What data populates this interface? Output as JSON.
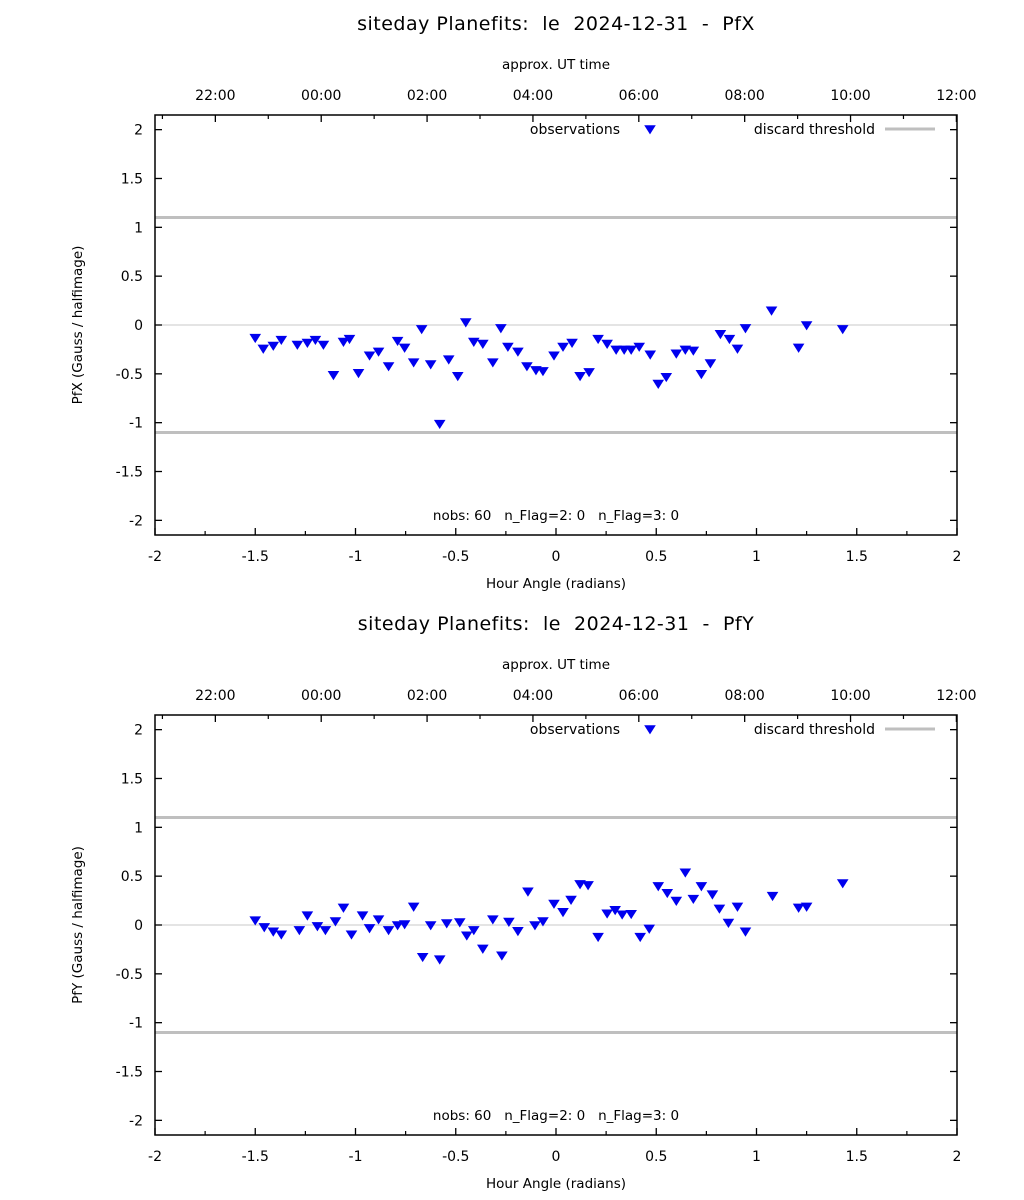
{
  "colors": {
    "marker": "#0000ee",
    "threshold": "#bfbfbf",
    "zero_line": "#c8c8c8",
    "axis": "#000000",
    "background": "#ffffff"
  },
  "chart_data": [
    {
      "type": "scatter",
      "title": "siteday Planefits:  le  2024-12-31  -  PfX",
      "x2label": "approx. UT time",
      "xlabel": "Hour Angle (radians)",
      "ylabel": "PfX (Gauss / halfimage)",
      "annotation": "nobs: 60   n_Flag=2: 0   n_Flag=3: 0",
      "xlim": [
        -2,
        2
      ],
      "ylim": [
        -2.15,
        2.15
      ],
      "xticks": [
        -2,
        -1.5,
        -1,
        -0.5,
        0,
        0.5,
        1,
        1.5,
        2
      ],
      "xminor": [
        -1.75,
        -1.25,
        -0.75,
        -0.25,
        0.25,
        0.75,
        1.25,
        1.75
      ],
      "yticks": [
        2,
        1.5,
        1,
        0.5,
        0,
        -0.5,
        -1,
        -1.5,
        -2
      ],
      "ut_ticks": [
        {
          "label": "22:00",
          "x": -1.699
        },
        {
          "label": "00:00",
          "x": -1.171
        },
        {
          "label": "02:00",
          "x": -0.643
        },
        {
          "label": "04:00",
          "x": -0.115
        },
        {
          "label": "06:00",
          "x": 0.413
        },
        {
          "label": "08:00",
          "x": 0.941
        },
        {
          "label": "10:00",
          "x": 1.469
        },
        {
          "label": "12:00",
          "x": 1.997
        }
      ],
      "ut_minor": [
        -1.963,
        -1.435,
        -0.907,
        -0.379,
        0.149,
        0.677,
        1.205,
        1.733
      ],
      "discard_threshold": 1.1,
      "legend": {
        "observations_label": "observations",
        "threshold_label": "discard threshold"
      },
      "series": [
        {
          "name": "observations",
          "marker": "triangle-down",
          "points": [
            [
              -1.5,
              -0.13
            ],
            [
              -1.46,
              -0.24
            ],
            [
              -1.41,
              -0.21
            ],
            [
              -1.37,
              -0.15
            ],
            [
              -1.29,
              -0.2
            ],
            [
              -1.24,
              -0.18
            ],
            [
              -1.2,
              -0.15
            ],
            [
              -1.16,
              -0.2
            ],
            [
              -1.11,
              -0.51
            ],
            [
              -1.06,
              -0.17
            ],
            [
              -1.03,
              -0.14
            ],
            [
              -0.985,
              -0.49
            ],
            [
              -0.93,
              -0.31
            ],
            [
              -0.885,
              -0.27
            ],
            [
              -0.835,
              -0.42
            ],
            [
              -0.79,
              -0.16
            ],
            [
              -0.755,
              -0.23
            ],
            [
              -0.71,
              -0.38
            ],
            [
              -0.67,
              -0.04
            ],
            [
              -0.625,
              -0.4
            ],
            [
              -0.58,
              -1.01
            ],
            [
              -0.535,
              -0.35
            ],
            [
              -0.49,
              -0.52
            ],
            [
              -0.45,
              0.03
            ],
            [
              -0.41,
              -0.17
            ],
            [
              -0.365,
              -0.19
            ],
            [
              -0.315,
              -0.38
            ],
            [
              -0.275,
              -0.03
            ],
            [
              -0.24,
              -0.22
            ],
            [
              -0.19,
              -0.27
            ],
            [
              -0.145,
              -0.42
            ],
            [
              -0.1,
              -0.46
            ],
            [
              -0.065,
              -0.47
            ],
            [
              -0.01,
              -0.31
            ],
            [
              0.035,
              -0.22
            ],
            [
              0.08,
              -0.18
            ],
            [
              0.12,
              -0.52
            ],
            [
              0.165,
              -0.48
            ],
            [
              0.21,
              -0.14
            ],
            [
              0.255,
              -0.19
            ],
            [
              0.3,
              -0.25
            ],
            [
              0.34,
              -0.25
            ],
            [
              0.375,
              -0.25
            ],
            [
              0.415,
              -0.22
            ],
            [
              0.47,
              -0.3
            ],
            [
              0.51,
              -0.6
            ],
            [
              0.55,
              -0.53
            ],
            [
              0.6,
              -0.29
            ],
            [
              0.645,
              -0.25
            ],
            [
              0.685,
              -0.26
            ],
            [
              0.725,
              -0.5
            ],
            [
              0.77,
              -0.39
            ],
            [
              0.82,
              -0.09
            ],
            [
              0.865,
              -0.14
            ],
            [
              0.905,
              -0.24
            ],
            [
              0.945,
              -0.03
            ],
            [
              1.075,
              0.15
            ],
            [
              1.21,
              -0.23
            ],
            [
              1.25,
              0.0
            ],
            [
              1.43,
              -0.04
            ]
          ]
        }
      ]
    },
    {
      "type": "scatter",
      "title": "siteday Planefits:  le  2024-12-31  -  PfY",
      "x2label": "approx. UT time",
      "xlabel": "Hour Angle (radians)",
      "ylabel": "PfY (Gauss / halfimage)",
      "annotation": "nobs: 60   n_Flag=2: 0   n_Flag=3: 0",
      "xlim": [
        -2,
        2
      ],
      "ylim": [
        -2.15,
        2.15
      ],
      "xticks": [
        -2,
        -1.5,
        -1,
        -0.5,
        0,
        0.5,
        1,
        1.5,
        2
      ],
      "xminor": [
        -1.75,
        -1.25,
        -0.75,
        -0.25,
        0.25,
        0.75,
        1.25,
        1.75
      ],
      "yticks": [
        2,
        1.5,
        1,
        0.5,
        0,
        -0.5,
        -1,
        -1.5,
        -2
      ],
      "ut_ticks": [
        {
          "label": "22:00",
          "x": -1.699
        },
        {
          "label": "00:00",
          "x": -1.171
        },
        {
          "label": "02:00",
          "x": -0.643
        },
        {
          "label": "04:00",
          "x": -0.115
        },
        {
          "label": "06:00",
          "x": 0.413
        },
        {
          "label": "08:00",
          "x": 0.941
        },
        {
          "label": "10:00",
          "x": 1.469
        },
        {
          "label": "12:00",
          "x": 1.997
        }
      ],
      "ut_minor": [
        -1.963,
        -1.435,
        -0.907,
        -0.379,
        0.149,
        0.677,
        1.205,
        1.733
      ],
      "discard_threshold": 1.1,
      "legend": {
        "observations_label": "observations",
        "threshold_label": "discard threshold"
      },
      "series": [
        {
          "name": "observations",
          "marker": "triangle-down",
          "points": [
            [
              -1.5,
              0.05
            ],
            [
              -1.455,
              -0.02
            ],
            [
              -1.41,
              -0.065
            ],
            [
              -1.37,
              -0.095
            ],
            [
              -1.28,
              -0.05
            ],
            [
              -1.24,
              0.1
            ],
            [
              -1.19,
              -0.01
            ],
            [
              -1.15,
              -0.05
            ],
            [
              -1.1,
              0.04
            ],
            [
              -1.06,
              0.18
            ],
            [
              -1.02,
              -0.095
            ],
            [
              -0.965,
              0.1
            ],
            [
              -0.93,
              -0.03
            ],
            [
              -0.885,
              0.06
            ],
            [
              -0.835,
              -0.05
            ],
            [
              -0.79,
              0.0
            ],
            [
              -0.755,
              0.01
            ],
            [
              -0.71,
              0.19
            ],
            [
              -0.665,
              -0.325
            ],
            [
              -0.625,
              0.0
            ],
            [
              -0.58,
              -0.35
            ],
            [
              -0.545,
              0.02
            ],
            [
              -0.48,
              0.03
            ],
            [
              -0.445,
              -0.105
            ],
            [
              -0.41,
              -0.05
            ],
            [
              -0.365,
              -0.24
            ],
            [
              -0.315,
              0.06
            ],
            [
              -0.27,
              -0.31
            ],
            [
              -0.235,
              0.035
            ],
            [
              -0.19,
              -0.06
            ],
            [
              -0.14,
              0.345
            ],
            [
              -0.105,
              0.0
            ],
            [
              -0.065,
              0.04
            ],
            [
              -0.01,
              0.22
            ],
            [
              0.035,
              0.135
            ],
            [
              0.075,
              0.26
            ],
            [
              0.12,
              0.42
            ],
            [
              0.16,
              0.41
            ],
            [
              0.21,
              -0.12
            ],
            [
              0.255,
              0.12
            ],
            [
              0.295,
              0.155
            ],
            [
              0.33,
              0.11
            ],
            [
              0.375,
              0.115
            ],
            [
              0.42,
              -0.12
            ],
            [
              0.465,
              -0.035
            ],
            [
              0.51,
              0.4
            ],
            [
              0.555,
              0.33
            ],
            [
              0.6,
              0.25
            ],
            [
              0.645,
              0.54
            ],
            [
              0.685,
              0.27
            ],
            [
              0.725,
              0.4
            ],
            [
              0.78,
              0.315
            ],
            [
              0.815,
              0.17
            ],
            [
              0.86,
              0.025
            ],
            [
              0.905,
              0.19
            ],
            [
              0.945,
              -0.065
            ],
            [
              1.08,
              0.3
            ],
            [
              1.21,
              0.18
            ],
            [
              1.25,
              0.19
            ],
            [
              1.43,
              0.43
            ]
          ]
        }
      ]
    }
  ]
}
